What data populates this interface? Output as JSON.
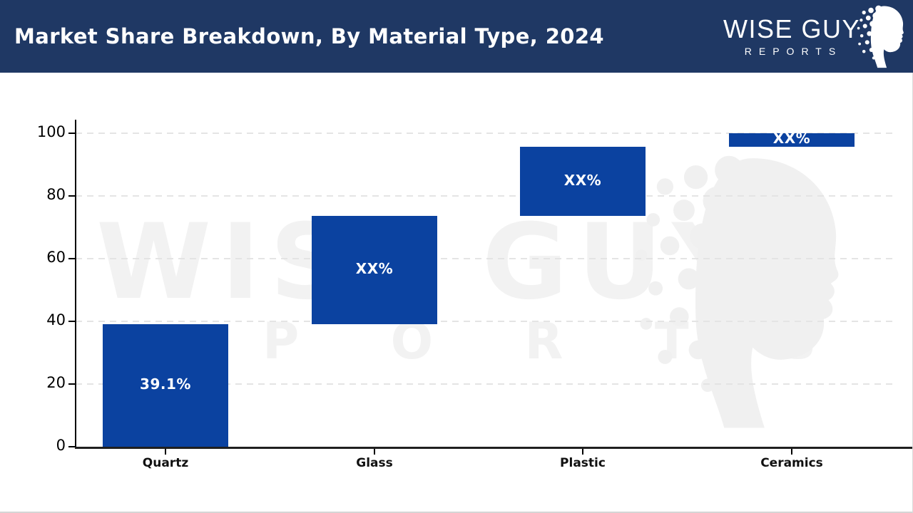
{
  "header": {
    "title": "Market Share Breakdown, By Material Type, 2024",
    "bg_color": "#1f3864",
    "logo": {
      "line1": "WISE GUY",
      "line2": "REPORTS"
    }
  },
  "watermark": {
    "line1": "WISE GUY",
    "line2": "P O R T S"
  },
  "chart_data": {
    "type": "bar",
    "subtype": "waterfall-floating-bars",
    "title": "Market Share Breakdown, By Material Type, 2024",
    "categories": [
      "Quartz",
      "Glass",
      "Plastic",
      "Ceramics"
    ],
    "segments": [
      {
        "category": "Quartz",
        "start": 0,
        "end": 39.1,
        "label": "39.1%"
      },
      {
        "category": "Glass",
        "start": 39.1,
        "end": 73.5,
        "label": "XX%"
      },
      {
        "category": "Plastic",
        "start": 73.5,
        "end": 95.5,
        "label": "XX%"
      },
      {
        "category": "Ceramics",
        "start": 95.5,
        "end": 100,
        "label": "XX%"
      }
    ],
    "segment_sizes_estimated": [
      39.1,
      34.4,
      22.0,
      4.5
    ],
    "xlabel": "",
    "ylabel": "",
    "ylim": [
      0,
      105
    ],
    "yticks": [
      0,
      20,
      40,
      60,
      80,
      100
    ],
    "grid": "horizontal dashed",
    "legend": "none",
    "bar_color": "#0b42a0",
    "bar_label_color": "#ffffff",
    "only_first_bar_labeled_numerically": true
  }
}
